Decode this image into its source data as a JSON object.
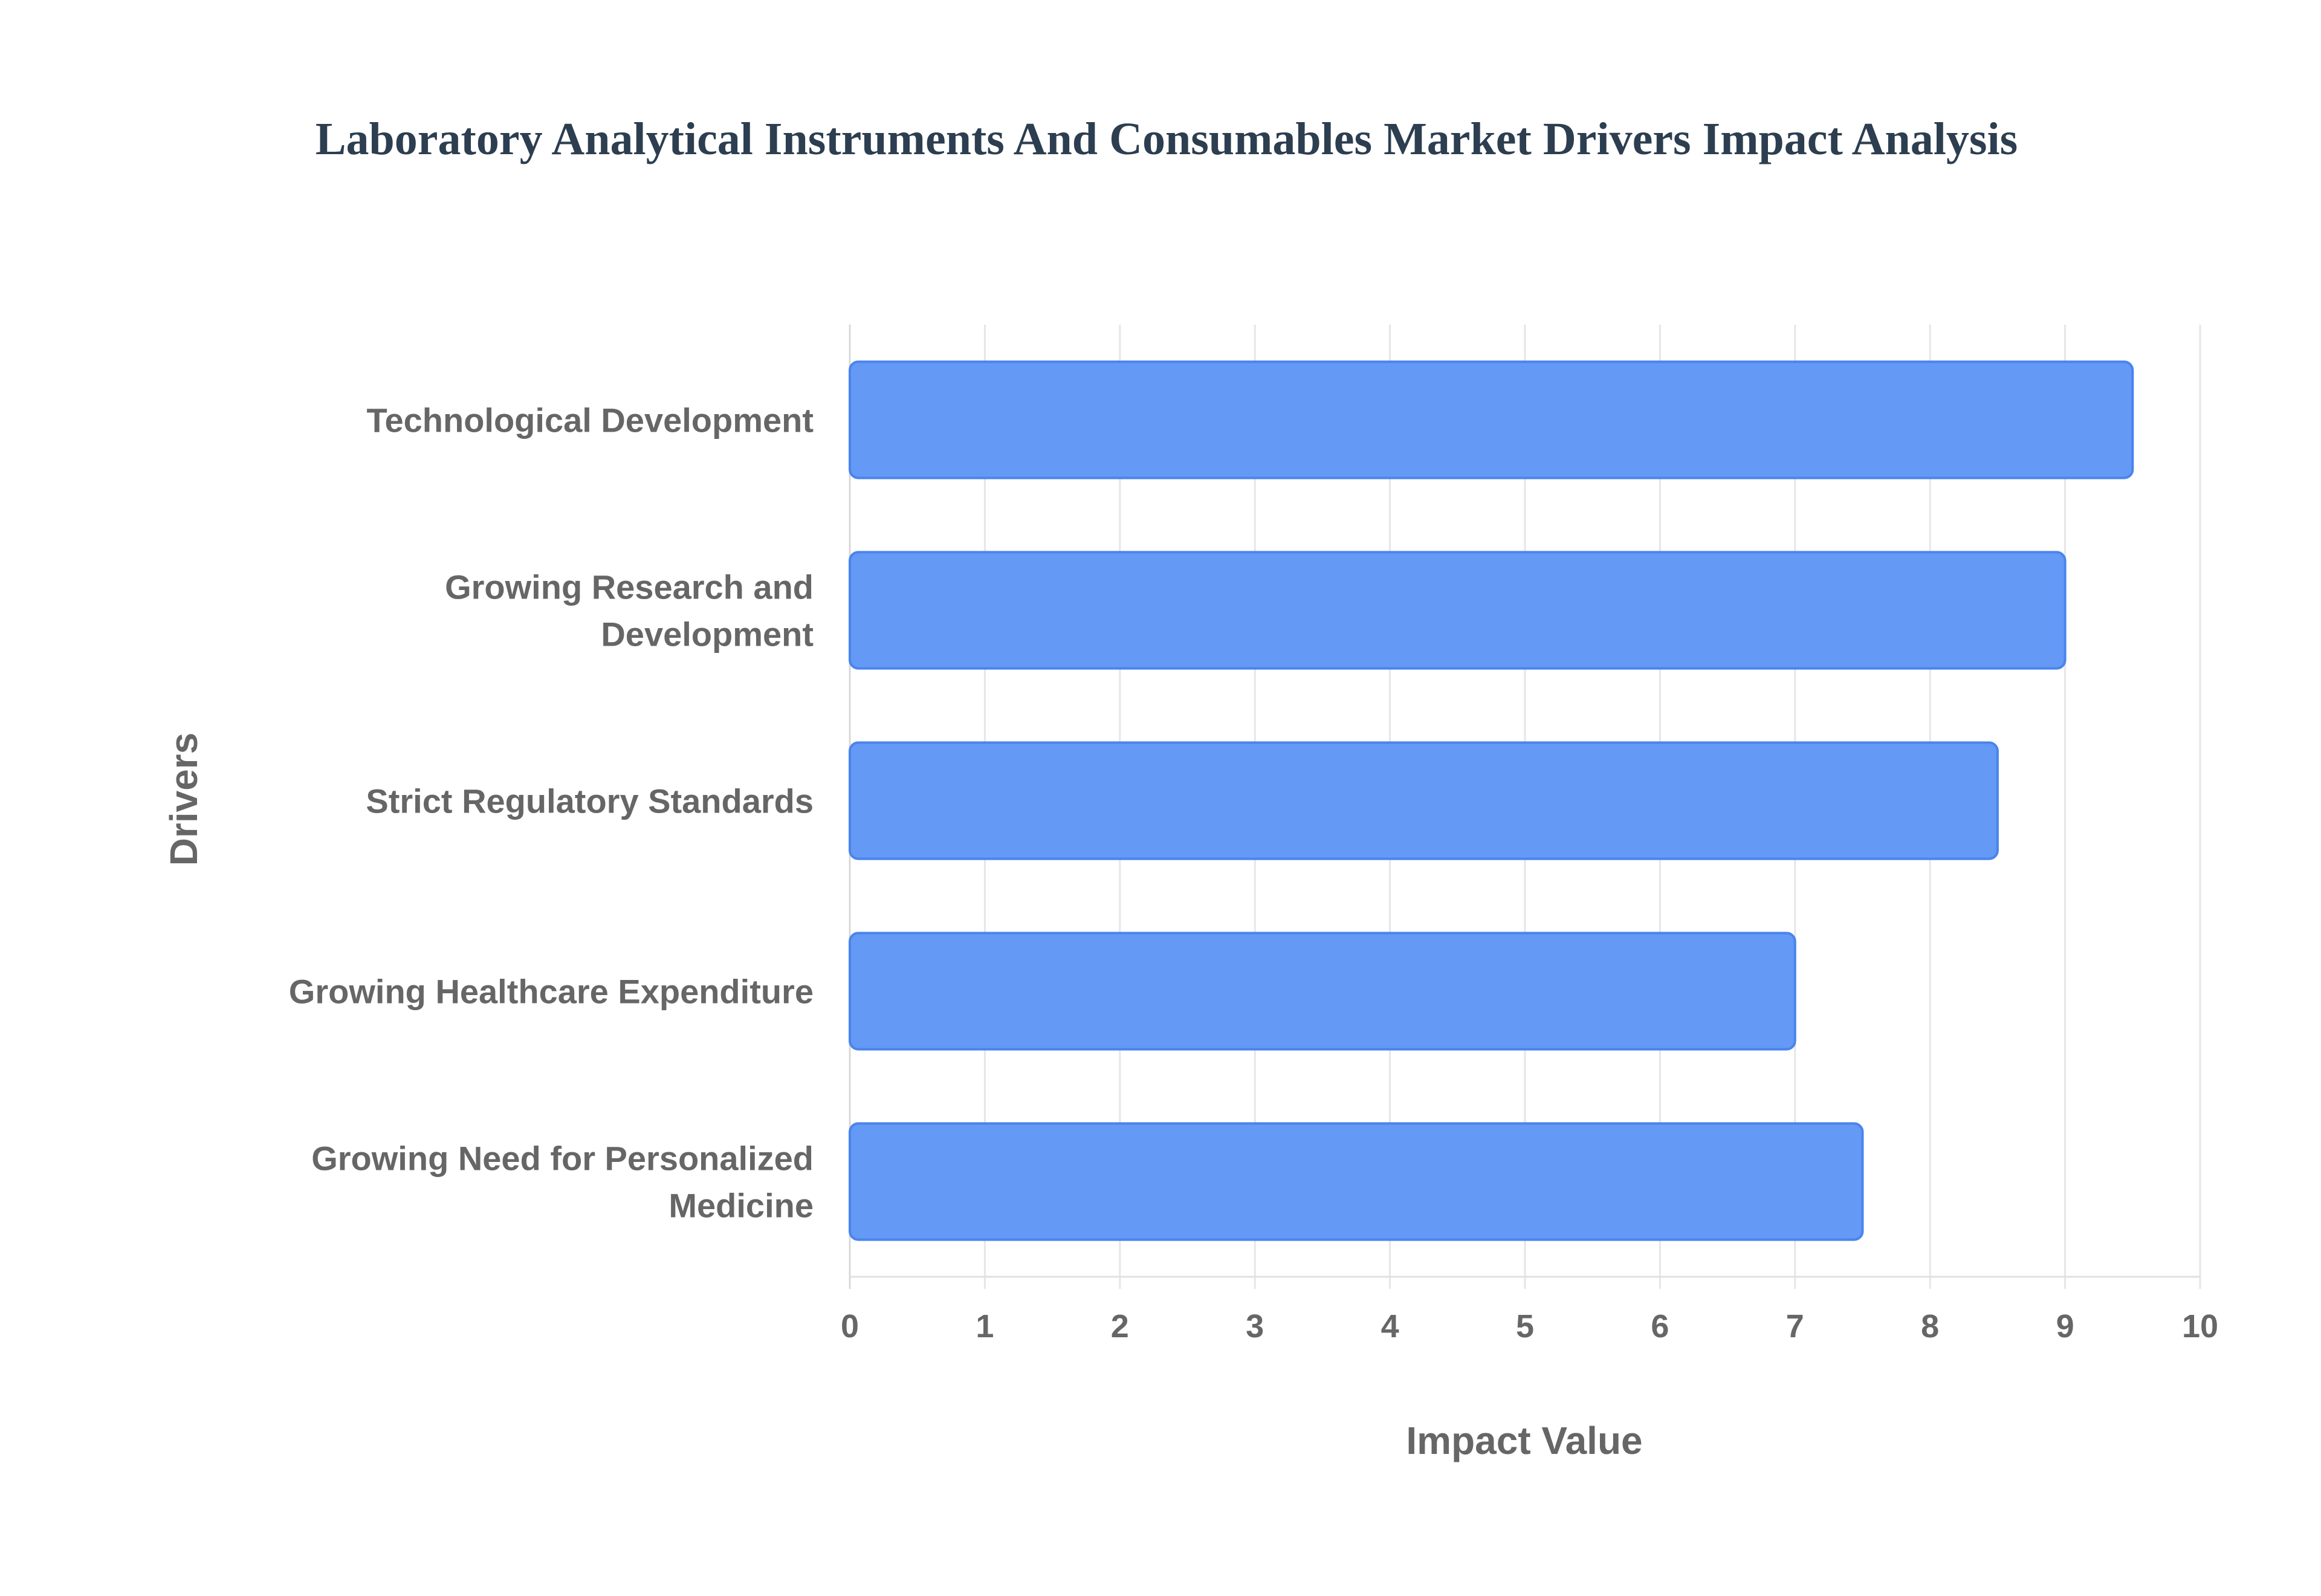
{
  "chart_data": {
    "type": "bar",
    "orientation": "horizontal",
    "title": "Laboratory Analytical Instruments And Consumables Market Drivers Impact Analysis",
    "xlabel": "Impact Value",
    "ylabel": "Drivers",
    "categories": [
      [
        "Technological Development"
      ],
      [
        "Growing Research and",
        "Development"
      ],
      [
        "Strict Regulatory Standards"
      ],
      [
        "Growing Healthcare Expenditure"
      ],
      [
        "Growing Need for Personalized",
        "Medicine"
      ]
    ],
    "values": [
      9.5,
      9,
      8.5,
      7,
      7.5
    ],
    "xlim": [
      0,
      10
    ],
    "xticks": [
      "0",
      "1",
      "2",
      "3",
      "4",
      "5",
      "6",
      "7",
      "8",
      "9",
      "10"
    ],
    "grid": true,
    "legend": "none",
    "colors": {
      "bar_fill": "#6499f5",
      "bar_border": "#4a84ee",
      "grid": "#e6e6e6",
      "title": "#2c3e50",
      "text": "#666666"
    }
  }
}
